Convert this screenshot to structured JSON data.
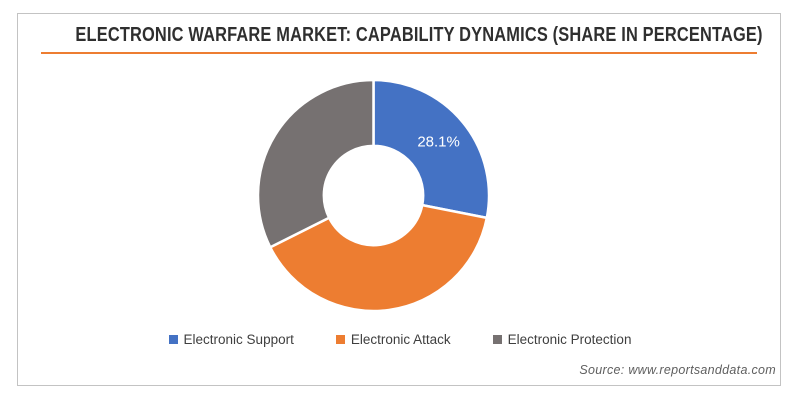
{
  "chart_data": {
    "type": "pie",
    "subtype": "donut",
    "title": "ELECTRONIC WARFARE MARKET: CAPABILITY DYNAMICS (SHARE IN PERCENTAGE)",
    "categories": [
      "Electronic Support",
      "Electronic Attack",
      "Electronic Protection"
    ],
    "values": [
      28.1,
      39.5,
      32.4
    ],
    "colors": [
      "#4472C4",
      "#ED7D31",
      "#767171"
    ],
    "data_labels": [
      "28.1%",
      "",
      ""
    ],
    "data_label_color": "#FFFFFF",
    "start_angle_deg": 0,
    "direction": "clockwise",
    "inner_radius_ratio": 0.43,
    "legend_position": "bottom"
  },
  "footer": {
    "source": "Source: www.reportsanddata.com"
  },
  "style": {
    "accent_rule_color": "#ED7D31",
    "frame_border_color": "#C3C3C3",
    "title_color": "#2F2F2F",
    "legend_text_color": "#3F3F3F",
    "source_text_color": "#5F5F5F",
    "background": "#FFFFFF"
  }
}
